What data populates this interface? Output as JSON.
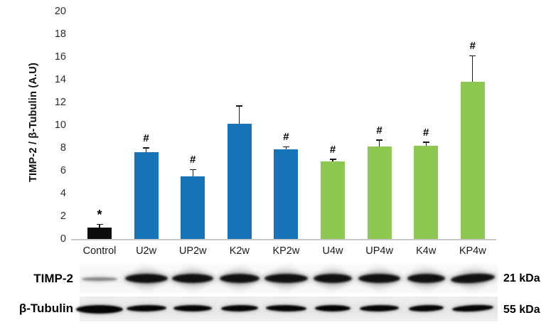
{
  "chart_data": {
    "type": "bar",
    "title": "",
    "xlabel": "",
    "ylabel": "TIMP-2 / β-Tubulin (A.U)",
    "categories": [
      "Control",
      "U2w",
      "UP2w",
      "K2w",
      "KP2w",
      "U4w",
      "UP4w",
      "K4w",
      "KP4w"
    ],
    "values": [
      1.0,
      7.6,
      5.5,
      10.1,
      7.9,
      6.8,
      8.1,
      8.2,
      13.8
    ],
    "errors_plus": [
      0.3,
      0.4,
      0.6,
      1.6,
      0.2,
      0.2,
      0.6,
      0.3,
      2.3
    ],
    "significance_markers": [
      "*",
      "#",
      "#",
      "",
      "#",
      "#",
      "#",
      "#",
      "#"
    ],
    "bar_colors": [
      "#0d0d0d",
      "#1673b9",
      "#1673b9",
      "#1673b9",
      "#1673b9",
      "#8ec752",
      "#8ec752",
      "#8ec752",
      "#8ec752"
    ],
    "ylim": [
      0,
      20
    ],
    "ytick_step": 2,
    "grid": false,
    "legend": "none"
  },
  "blot": {
    "lanes": [
      "Control",
      "U2w",
      "UP2w",
      "K2w",
      "KP2w",
      "U4w",
      "UP4w",
      "K4w",
      "KP4w"
    ],
    "rows": [
      {
        "label": "TIMP-2",
        "size_label": "21 kDa",
        "bands": [
          "faint",
          "strong",
          "strong",
          "strong",
          "strong",
          "strong",
          "strong",
          "strong",
          "strong"
        ]
      },
      {
        "label": "β-Tubulin",
        "size_label": "55 kDa",
        "bands": [
          "strong",
          "strong",
          "strong",
          "strong",
          "strong",
          "strong",
          "strong",
          "strong",
          "strong"
        ]
      }
    ]
  },
  "colors": {
    "control_bar": "#0d0d0d",
    "week2_bars": "#1673b9",
    "week4_bars": "#8ec752",
    "axis_line": "#c6c6c6",
    "text": "#1a1a1a"
  }
}
